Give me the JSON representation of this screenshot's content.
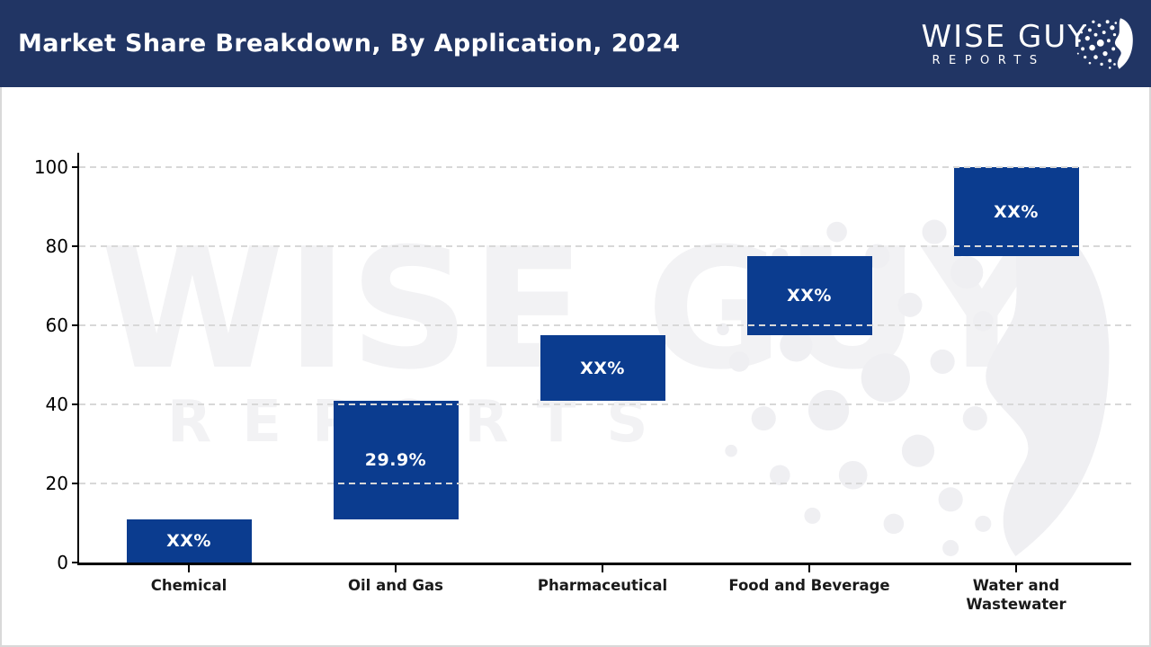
{
  "header": {
    "title": "Market Share Breakdown, By Application, 2024",
    "logo": {
      "name": "WISE GUY",
      "sub": "REPORTS"
    }
  },
  "watermark": {
    "line1": "WISE GUY",
    "line2": "REPORTS"
  },
  "colors": {
    "header_bg": "#213564",
    "bar": "#0B3C8F",
    "bar_label_text": "#FFFFFF",
    "axis": "#000000",
    "grid": "#D8D8D8",
    "tick_text": "#000000",
    "watermark": "#F2F2F4"
  },
  "chart_data": {
    "type": "bar",
    "subtype": "waterfall",
    "title": "Market Share Breakdown, By Application, 2024",
    "categories": [
      "Chemical",
      "Oil and Gas",
      "Pharmaceutical",
      "Food and Beverage",
      "Water and\nWastewater"
    ],
    "segments": [
      {
        "category": "Chemical",
        "start": 0,
        "end": 11,
        "label": "XX%"
      },
      {
        "category": "Oil and Gas",
        "start": 11,
        "end": 40.9,
        "label": "29.9%",
        "value": 29.9
      },
      {
        "category": "Pharmaceutical",
        "start": 40.9,
        "end": 57.5,
        "label": "XX%"
      },
      {
        "category": "Food and Beverage",
        "start": 57.5,
        "end": 77.4,
        "label": "XX%"
      },
      {
        "category": "Water and Wastewater",
        "start": 77.4,
        "end": 100,
        "label": "XX%"
      }
    ],
    "xlabel": "",
    "ylabel": "",
    "ylim": [
      0,
      100
    ],
    "yticks": [
      0,
      20,
      40,
      60,
      80,
      100
    ],
    "grid": "horizontal-dashed",
    "legend": "none"
  }
}
